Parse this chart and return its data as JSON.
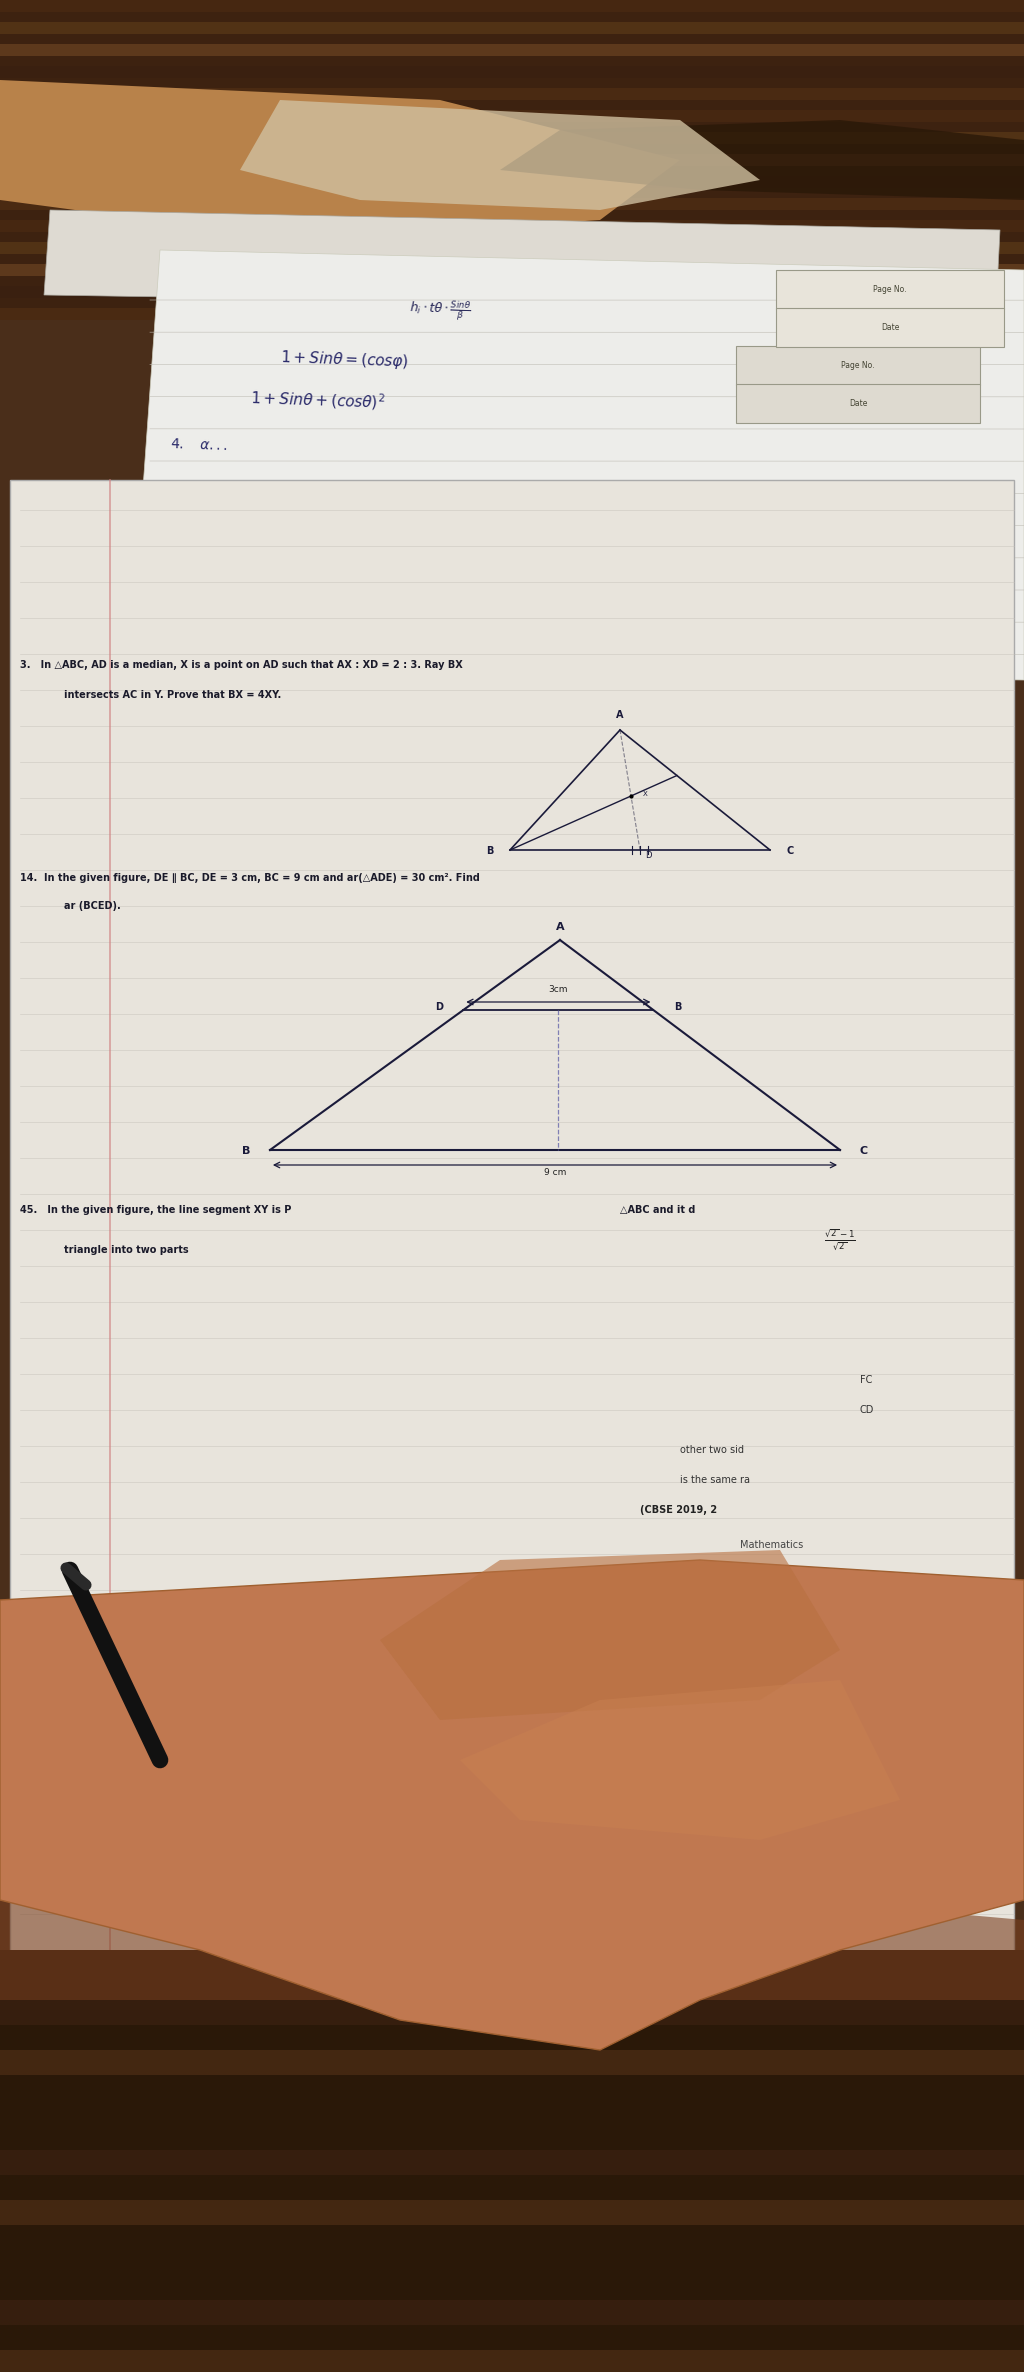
{
  "bg_color": "#4a2e1a",
  "fabric_dark": "#3a2010",
  "fabric_mid": "#7a4a28",
  "fabric_light": "#c09060",
  "paper_color1": "#e8e4dc",
  "paper_color2": "#f0ece4",
  "paper_line_color": "#c8c4bc",
  "text_dark": "#1a1a2a",
  "text_blue": "#2a2a5a",
  "text_gray": "#404040",
  "page_box_color": "#dedad2",
  "q3_text": "3.   In △ABC, AD is a median, X is a point on AD such that AX : XD = 2 : 3. Ray BX",
  "q3_text2": "intersects AC in Y. Prove that BX = 4XY.",
  "q4_text": "14.  In the given figure, DE ∥ BC, DE = 3 cm, BC = 9 cm and ar(△ADE) = 30 cm². Find",
  "q4_text2": "ar (BCED).",
  "q5_text": "45.   In the given figure, the line segment XY is P",
  "q5_text2": "triangle into two parts",
  "fc_text": "FC",
  "cd_text": "CD",
  "other_text": "other two sid",
  "same_text": "is the same ra",
  "ref_text": "(CBSE 2019, 2",
  "math_text": "Mathematics",
  "page_no": "Page No.",
  "date_label": "Date"
}
